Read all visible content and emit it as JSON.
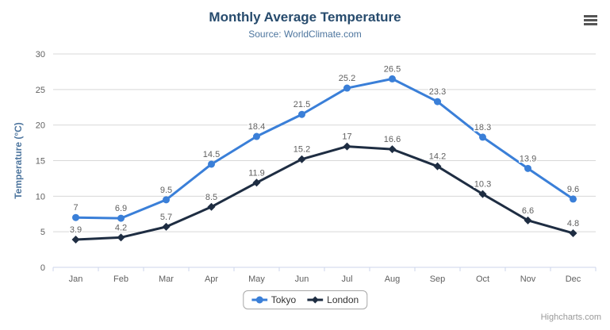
{
  "chart": {
    "title": "Monthly Average Temperature",
    "subtitle": "Source: WorldClimate.com",
    "credits_label": "Highcharts.com",
    "context_menu_icon": "hamburger-menu-icon",
    "colors": {
      "title_text": "#274b6d",
      "subtitle_text": "#4d759e",
      "axis_title_text": "#4d759e",
      "axis_labels_text": "#606060",
      "data_label_text": "#606060",
      "grid_line": "#d8d8d8",
      "axis_line": "#ccd6eb",
      "legend_border": "#a8a8a8",
      "legend_text": "#333333",
      "credits_text": "#999999",
      "menu_icon": "#555555"
    }
  },
  "chart_data": {
    "type": "line",
    "title": "Monthly Average Temperature",
    "subtitle": "Source: WorldClimate.com",
    "xlabel": "",
    "ylabel": "Temperature (°C)",
    "ylim": [
      0,
      30
    ],
    "ytick_interval": 5,
    "grid": true,
    "legend_position": "bottom-center",
    "categories": [
      "Jan",
      "Feb",
      "Mar",
      "Apr",
      "May",
      "Jun",
      "Jul",
      "Aug",
      "Sep",
      "Oct",
      "Nov",
      "Dec"
    ],
    "series": [
      {
        "name": "Tokyo",
        "color": "#3a7fd8",
        "marker": "circle",
        "values": [
          7,
          6.9,
          9.5,
          14.5,
          18.4,
          21.5,
          25.2,
          26.5,
          23.3,
          18.3,
          13.9,
          9.6
        ]
      },
      {
        "name": "London",
        "color": "#1e2d42",
        "marker": "diamond",
        "values": [
          3.9,
          4.2,
          5.7,
          8.5,
          11.9,
          15.2,
          17,
          16.6,
          14.2,
          10.3,
          6.6,
          4.8
        ]
      }
    ]
  }
}
